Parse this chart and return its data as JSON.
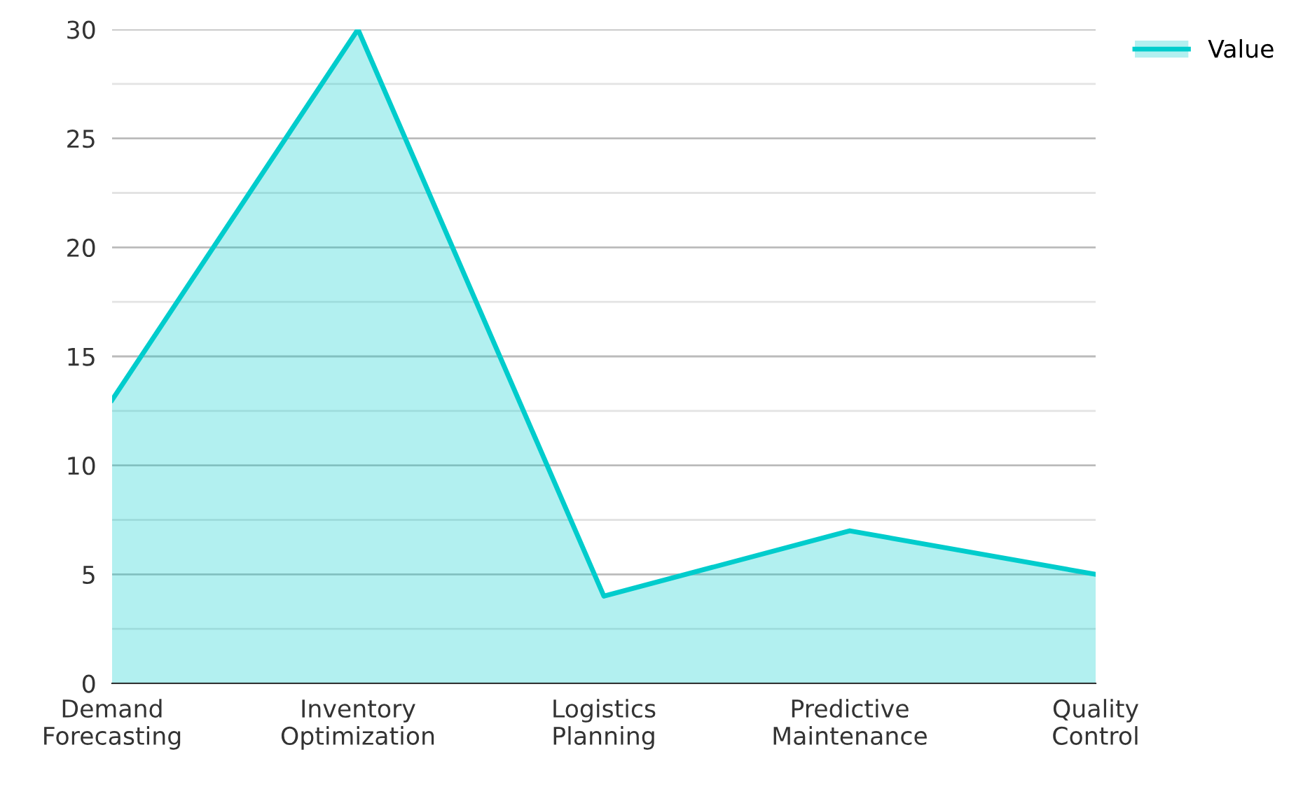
{
  "chart_data": {
    "type": "area",
    "categories": [
      "Demand\nForecasting",
      "Inventory\nOptimization",
      "Logistics\nPlanning",
      "Predictive\nMaintenance",
      "Quality\nControl"
    ],
    "series": [
      {
        "name": "Value",
        "color": "#00cccc",
        "values": [
          13,
          30,
          4,
          7,
          5
        ]
      }
    ],
    "ylim": [
      0,
      30
    ],
    "yticks": [
      0,
      {
        "value": 2.5,
        "label": null
      },
      5,
      {
        "value": 7.5,
        "label": null
      },
      10,
      {
        "value": 12.5,
        "label": null
      },
      15,
      {
        "value": 17.5,
        "label": null
      },
      20,
      {
        "value": 22.5,
        "label": null
      },
      25,
      {
        "value": 27.5,
        "label": null
      },
      30
    ],
    "grid": "y",
    "legend": "top right",
    "marker": "none",
    "line_style": "solid"
  }
}
